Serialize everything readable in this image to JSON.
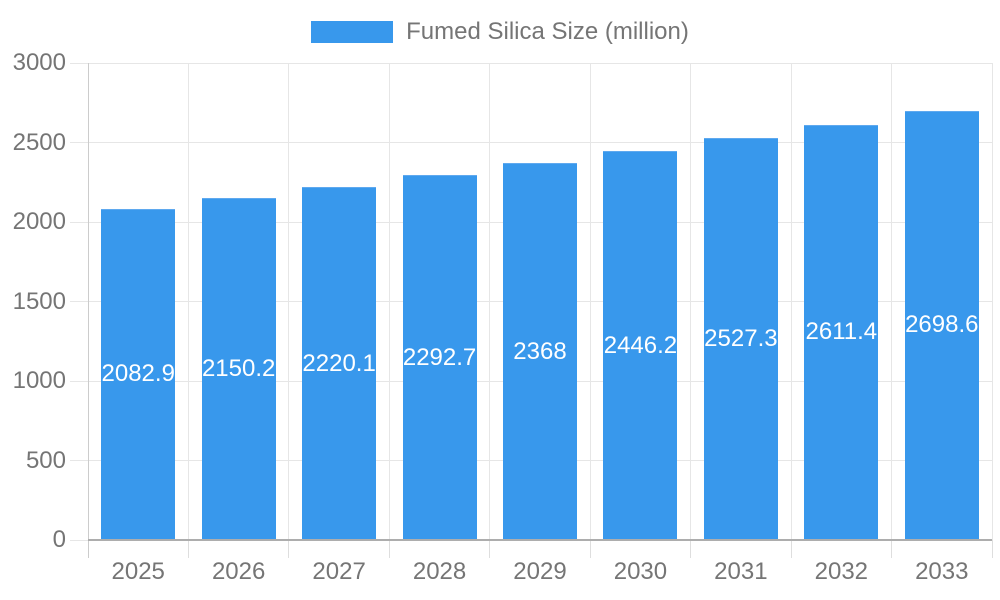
{
  "legend": {
    "label": "Fumed Silica Size (million)"
  },
  "chart_data": {
    "type": "bar",
    "title": "",
    "legend_label": "Fumed Silica Size (million)",
    "legend_position": "top",
    "categories": [
      "2025",
      "2026",
      "2027",
      "2028",
      "2029",
      "2030",
      "2031",
      "2032",
      "2033"
    ],
    "series": [
      {
        "name": "Fumed Silica Size (million)",
        "values": [
          2082.9,
          2150.2,
          2220.1,
          2292.7,
          2368,
          2446.2,
          2527.3,
          2611.4,
          2698.6
        ],
        "value_labels": [
          "2082.9",
          "2150.2",
          "2220.1",
          "2292.7",
          "2368",
          "2446.2",
          "2527.3",
          "2611.4",
          "2698.6"
        ]
      }
    ],
    "xlabel": "",
    "ylabel": "",
    "ylim": [
      0,
      3000
    ],
    "yticks": [
      0,
      500,
      1000,
      1500,
      2000,
      2500,
      3000
    ],
    "grid": true,
    "colors": {
      "bar": "#3898EC",
      "bar_edge": "#5FA9EF",
      "value_label_text": "#FFFFFF",
      "axis_text": "#757575",
      "grid_line": "#E6E6E6",
      "y_axis_line": "#CCCCCC",
      "x_axis_line": "#ADADAD",
      "below_axis_tick": "#DEDEDE",
      "background": "#FFFFFF"
    }
  }
}
